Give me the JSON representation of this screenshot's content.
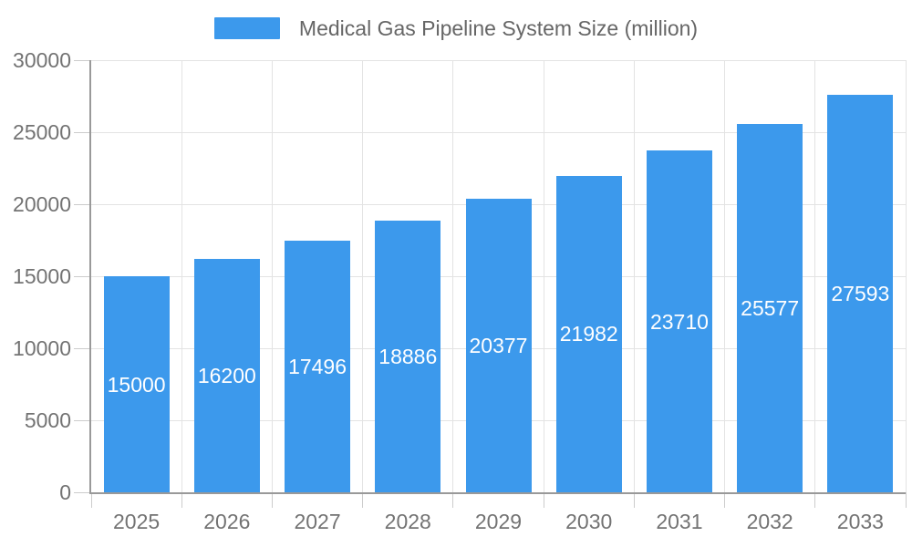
{
  "chart_data": {
    "type": "bar",
    "title": "Medical Gas Pipeline System Size (million)",
    "categories": [
      "2025",
      "2026",
      "2027",
      "2028",
      "2029",
      "2030",
      "2031",
      "2032",
      "2033"
    ],
    "series": [
      {
        "name": "Medical Gas Pipeline System Size (million)",
        "values": [
          15000,
          16200,
          17496,
          18886,
          20377,
          21982,
          23710,
          25577,
          27593
        ]
      }
    ],
    "xlabel": "",
    "ylabel": "",
    "ylim": [
      0,
      30000
    ],
    "yticks": [
      0,
      5000,
      10000,
      15000,
      20000,
      25000,
      30000
    ],
    "grid": "horizontal-and-vertical",
    "legend_position": "top-center",
    "value_labels": "inside-middle"
  },
  "legend": {
    "label": "Medical Gas Pipeline System Size (million)"
  },
  "style": {
    "bar_color": "#3C99EC",
    "grid_color": "#E3E3E3",
    "axis_line_color": "#999999",
    "tick_color": "#CCCCCC",
    "axis_label_color": "#737373",
    "legend_text_color": "#666666",
    "value_label_color": "#FFFFFF",
    "background_color": "#FFFFFF"
  }
}
